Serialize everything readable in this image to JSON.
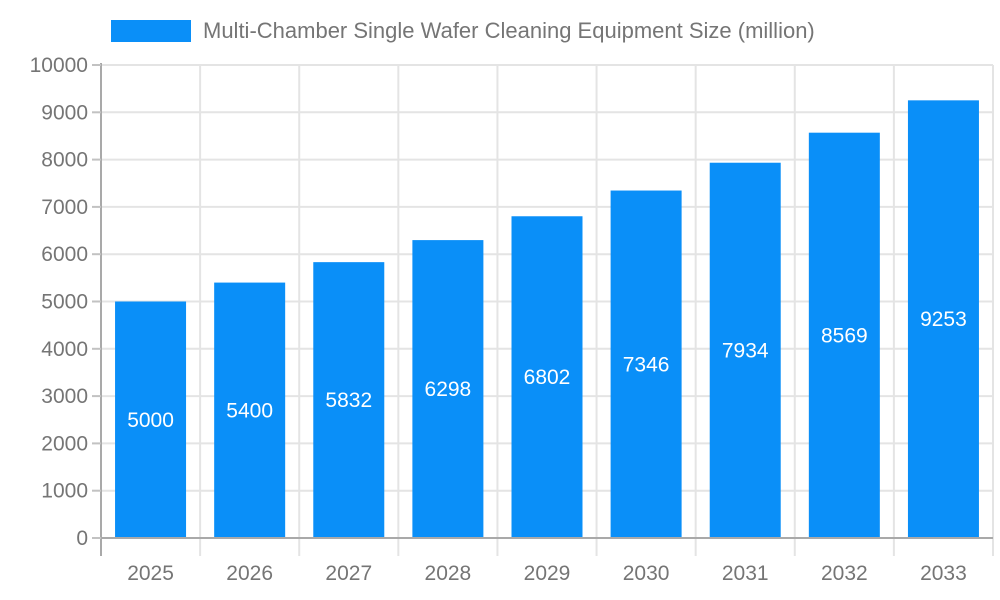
{
  "chart_data": {
    "type": "bar",
    "title": "Multi-Chamber Single Wafer Cleaning Equipment Size (million)",
    "categories": [
      "2025",
      "2026",
      "2027",
      "2028",
      "2029",
      "2030",
      "2031",
      "2032",
      "2033"
    ],
    "series": [
      {
        "name": "Multi-Chamber Single Wafer Cleaning Equipment Size (million)",
        "values": [
          5000,
          5400,
          5832,
          6298,
          6802,
          7346,
          7934,
          8569,
          9253
        ]
      }
    ],
    "xlabel": "",
    "ylabel": "",
    "ylim": [
      0,
      10000
    ],
    "ytick_step": 1000,
    "grid": true,
    "legend_position": "top-left",
    "value_label_position": "inside-center",
    "colors": {
      "bar": "#0a8ff8",
      "bar_value_label": "#ffffff",
      "axis_line": "#a9a9a9",
      "axis_tick": "#c2c2c2",
      "grid_line": "#e4e4e4",
      "tick_text": "#757575",
      "legend_text": "#757575",
      "background": "#ffffff"
    }
  }
}
